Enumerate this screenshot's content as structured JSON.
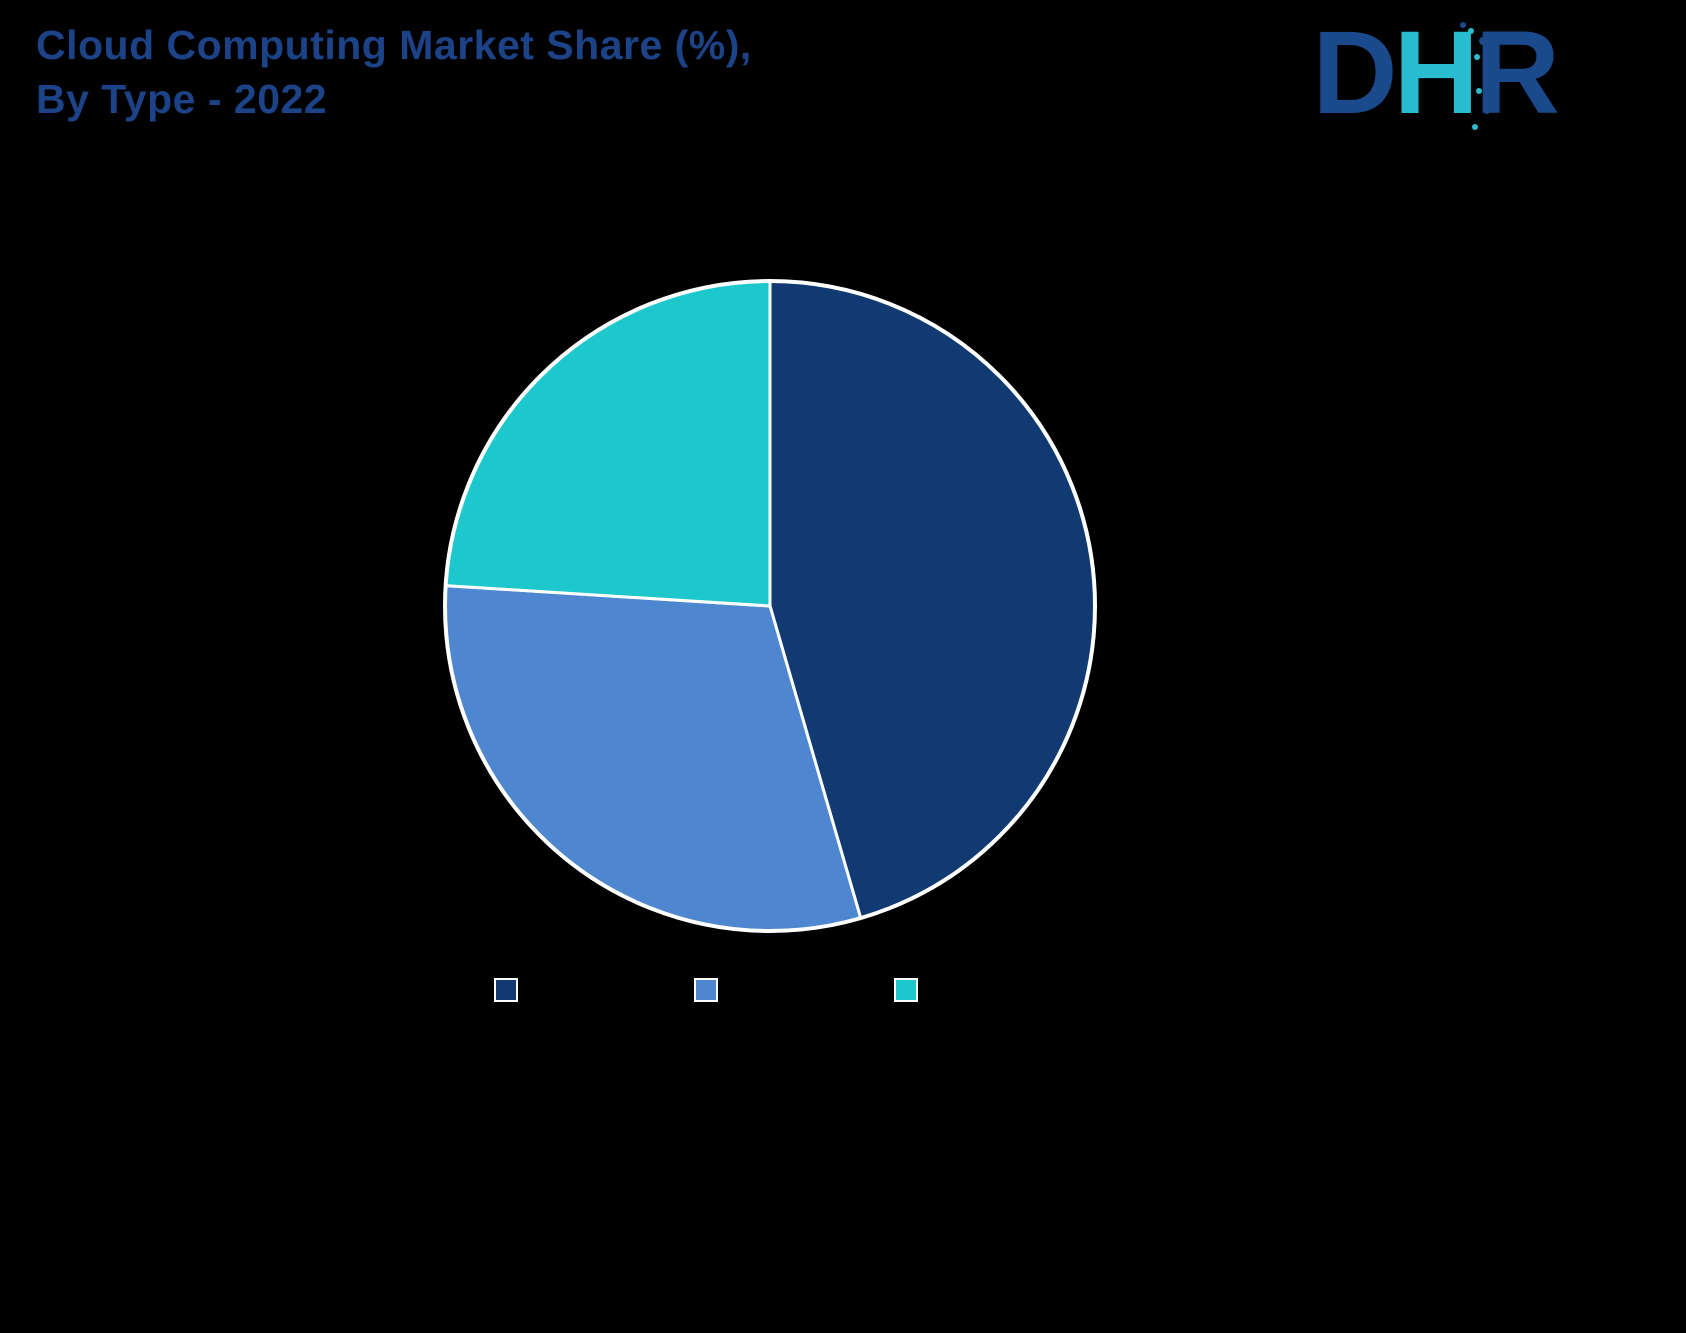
{
  "title": {
    "line1": "Cloud Computing Market Share (%),",
    "line2": "By Type - 2022"
  },
  "logo": {
    "d": "D",
    "h": "H",
    "r": "R"
  },
  "colors": {
    "title_color": "#1c4287",
    "logo_navy": "#1b4a8c",
    "logo_teal": "#27bcd0",
    "pie_stroke": "#ffffff",
    "background": "#000000"
  },
  "chart_data": {
    "type": "pie",
    "title": "Cloud Computing Market Share (%), By Type - 2022",
    "direction": "clockwise",
    "start_angle": "12-oclock",
    "legend_position": "bottom",
    "grid": false,
    "slices": [
      {
        "label": "",
        "value": 45.5,
        "color": "#123a72"
      },
      {
        "label": "",
        "value": 30.5,
        "color": "#4e86cf"
      },
      {
        "label": "",
        "value": 24.0,
        "color": "#1dc8cd"
      }
    ]
  }
}
